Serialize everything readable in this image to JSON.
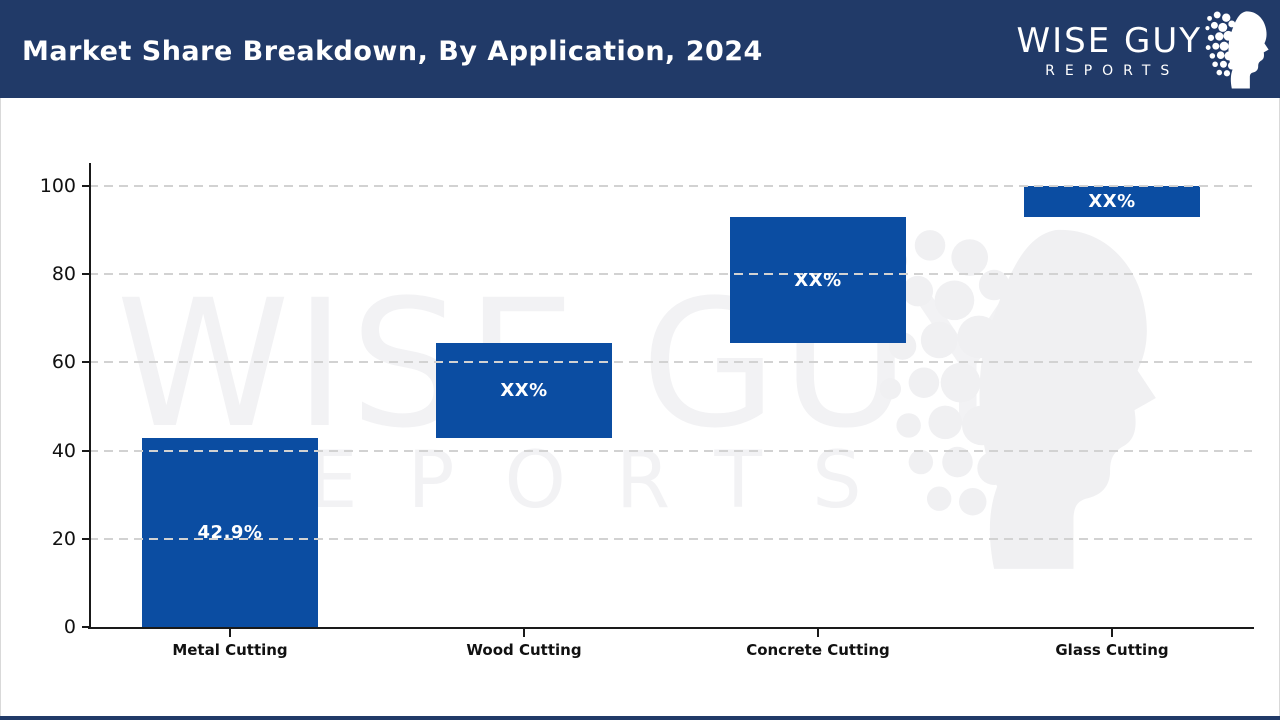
{
  "header": {
    "title": "Market Share Breakdown, By Application, 2024",
    "logo": {
      "line1": "WISE GUY",
      "line2": "REPORTS"
    }
  },
  "watermark": {
    "line1": "WISE GUY",
    "line2": "REPORTS"
  },
  "chart_data": {
    "type": "bar",
    "subtype": "waterfall",
    "title": "Market Share Breakdown, By Application, 2024",
    "categories": [
      "Metal Cutting",
      "Wood Cutting",
      "Concrete Cutting",
      "Glass Cutting"
    ],
    "segments": [
      {
        "category": "Metal Cutting",
        "start": 0,
        "end": 42.9,
        "label": "42.9%"
      },
      {
        "category": "Wood Cutting",
        "start": 42.9,
        "end": 64.3,
        "label": "XX%"
      },
      {
        "category": "Concrete Cutting",
        "start": 64.3,
        "end": 92.9,
        "label": "XX%"
      },
      {
        "category": "Glass Cutting",
        "start": 92.9,
        "end": 100,
        "label": "XX%"
      }
    ],
    "xlabel": "",
    "ylabel": "",
    "ylim": [
      0,
      100
    ],
    "yticks": [
      0,
      20,
      40,
      60,
      80,
      100
    ],
    "grid": "horizontal dashed, drawn above bars",
    "legend": "none",
    "bar_color": "#0B4DA2",
    "value_label_color": "#FFFFFF"
  },
  "colors": {
    "header_bg": "#213A68",
    "footer_bg": "#213A68",
    "bar": "#0B4DA2",
    "grid": "#D2D2D2",
    "watermark": "#F2F2F4",
    "axis": "#1A1A1A",
    "title_text": "#FFFFFF"
  }
}
